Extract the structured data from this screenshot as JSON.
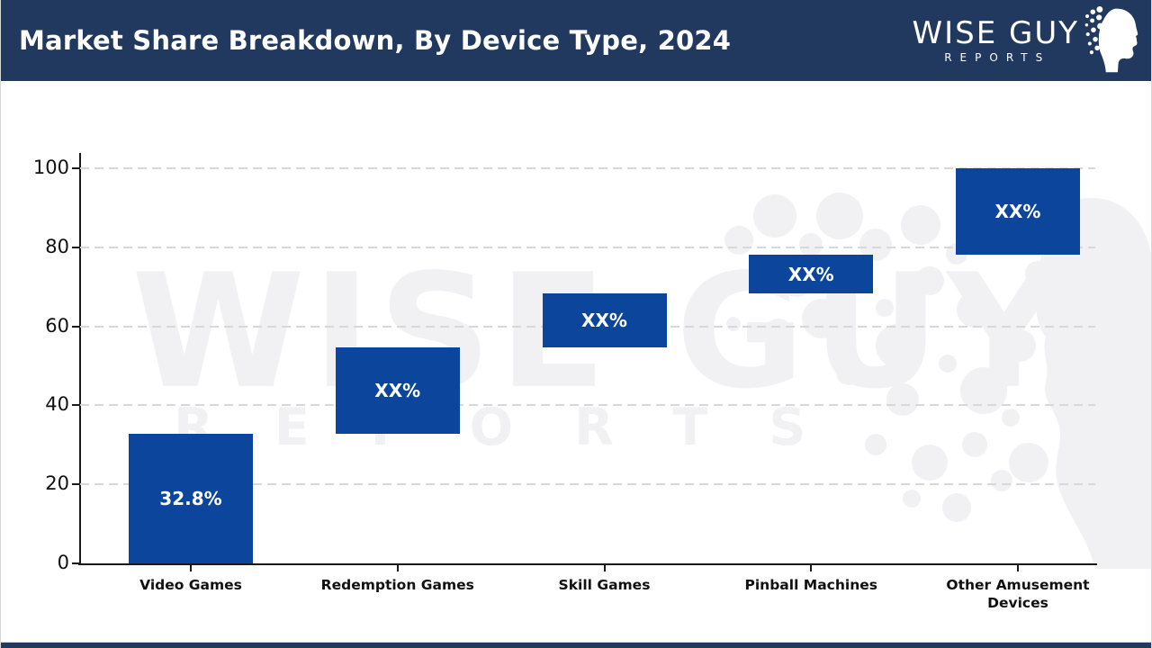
{
  "header": {
    "title": "Market Share Breakdown, By Device Type, 2024",
    "logo": {
      "line1": "WISE GUY",
      "line2": "REPORTS"
    }
  },
  "watermark": {
    "line1": "WISE GUY",
    "line2": "REPORTS"
  },
  "chart_data": {
    "type": "bar",
    "subtype": "waterfall",
    "title": "Market Share Breakdown, By Device Type, 2024",
    "categories": [
      "Video Games",
      "Redemption Games",
      "Skill Games",
      "Pinball Machines",
      "Other Amusement Devices"
    ],
    "bars": [
      {
        "category": "Video Games",
        "start": 0,
        "end": 32.8,
        "label": "32.8%"
      },
      {
        "category": "Redemption Games",
        "start": 32.8,
        "end": 54.7,
        "label": "XX%"
      },
      {
        "category": "Skill Games",
        "start": 54.7,
        "end": 68.3,
        "label": "XX%"
      },
      {
        "category": "Pinball Machines",
        "start": 68.3,
        "end": 78.1,
        "label": "XX%"
      },
      {
        "category": "Other Amusement Devices",
        "start": 78.1,
        "end": 100,
        "label": "XX%"
      }
    ],
    "xlabel": "",
    "ylabel": "",
    "ylim": [
      0,
      100
    ],
    "yticks": [
      0,
      20,
      40,
      60,
      80,
      100
    ],
    "grid": "horizontal-dashed",
    "legend": "none",
    "bar_color": "#0b459c",
    "bar_label_color": "#ffffff",
    "header_color": "#21395e"
  }
}
